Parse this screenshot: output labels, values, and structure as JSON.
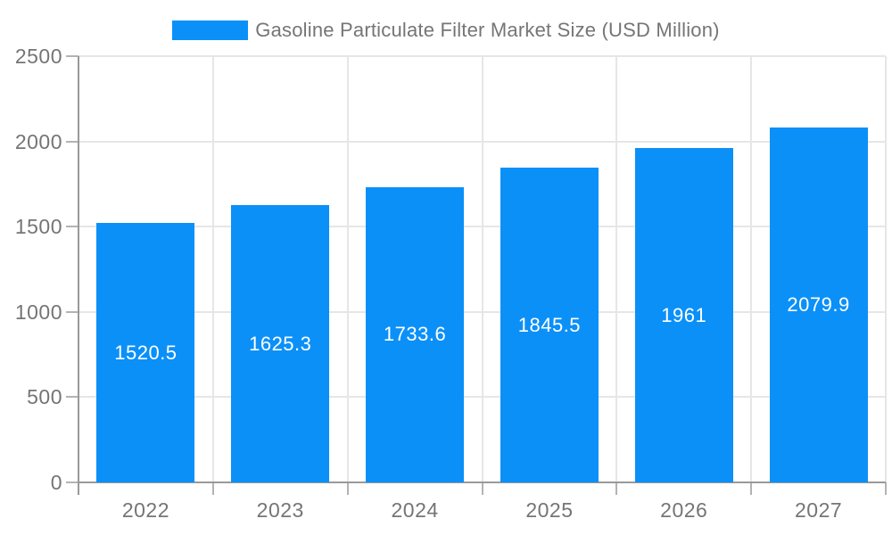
{
  "legend": {
    "label": "Gasoline Particulate Filter Market Size (USD Million)"
  },
  "chart_data": {
    "type": "bar",
    "title": "Gasoline Particulate Filter Market Size (USD Million)",
    "categories": [
      "2022",
      "2023",
      "2024",
      "2025",
      "2026",
      "2027"
    ],
    "series": [
      {
        "name": "Gasoline Particulate Filter Market Size (USD Million)",
        "values": [
          1520.5,
          1625.3,
          1733.6,
          1845.5,
          1961,
          2079.9
        ],
        "value_labels": [
          "1520.5",
          "1625.3",
          "1733.6",
          "1845.5",
          "1961",
          "2079.9"
        ]
      }
    ],
    "xlabel": "",
    "ylabel": "",
    "ylim": [
      0,
      2500
    ],
    "yticks": [
      0,
      500,
      1000,
      1500,
      2000,
      2500
    ],
    "grid": true,
    "legend_position": "top",
    "colors": {
      "bar": "#0b90f8",
      "grid": "#e6e6e6",
      "axis": "#999999",
      "tick": "#b3b3b3",
      "tick_label": "#757575",
      "legend_text": "#757575",
      "value_label": "#ffffff",
      "background": "#ffffff"
    }
  }
}
